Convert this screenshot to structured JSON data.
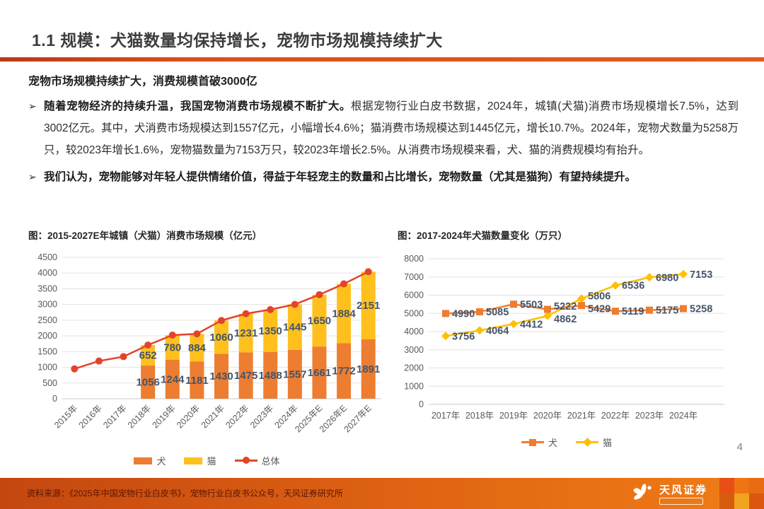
{
  "page": {
    "title": "1.1 规模：犬猫数量均保持增长，宠物市场规模持续扩大",
    "page_number": "4"
  },
  "intro": {
    "bullet_glyph": "➢",
    "subheading": "宠物市场规模持续扩大，消费规模首破3000亿",
    "bullet1_bold": "随着宠物经济的持续升温，我国宠物消费市场规模不断扩大。",
    "bullet1_rest": "根据宠物行业白皮书数据，2024年，城镇(犬猫)消费市场规模增长7.5%，达到3002亿元。其中，犬消费市场规模达到1557亿元，小幅增长4.6%；猫消费市场规模达到1445亿元，增长10.7%。2024年，宠物犬数量为5258万只，较2023年增长1.6%，宠物猫数量为7153万只，较2023年增长2.5%。从消费市场规模来看，犬、猫的消费规模均有抬升。",
    "bullet2": "我们认为，宠物能够对年轻人提供情绪价值，得益于年轻宠主的数量和占比增长，宠物数量（尤其是猫狗）有望持续提升。"
  },
  "chart_data": [
    {
      "type": "bar",
      "subtype": "stacked-bars-with-total-line",
      "title": "图：2015-2027E年城镇（犬猫）消费市场规模（亿元）",
      "categories": [
        "2015年",
        "2016年",
        "2017年",
        "2018年",
        "2019年",
        "2020年",
        "2021年",
        "2022年",
        "2023年",
        "2024年",
        "2025年E",
        "2026年E",
        "2027年E"
      ],
      "series": [
        {
          "name": "犬",
          "type": "bar",
          "color": "#ED7D31",
          "values": [
            null,
            null,
            null,
            1056,
            1244,
            1181,
            1430,
            1475,
            1488,
            1557,
            1661,
            1772,
            1891
          ]
        },
        {
          "name": "猫",
          "type": "bar",
          "color": "#FFC01E",
          "values": [
            null,
            null,
            null,
            652,
            780,
            884,
            1060,
            1231,
            1350,
            1445,
            1650,
            1884,
            2151
          ]
        },
        {
          "name": "总体",
          "type": "line",
          "color": "#E2442B",
          "values": [
            950,
            1200,
            1340,
            1708,
            2024,
            2065,
            2490,
            2706,
            2838,
            3002,
            3311,
            3656,
            4042
          ]
        }
      ],
      "ylim": [
        0,
        4500
      ],
      "ystep": 500,
      "grid": true,
      "legend_position": "bottom",
      "xlabel": "",
      "ylabel": ""
    },
    {
      "type": "line",
      "title": "图：2017-2024年犬猫数量变化（万只）",
      "categories": [
        "2017年",
        "2018年",
        "2019年",
        "2020年",
        "2021年",
        "2022年",
        "2023年",
        "2024年"
      ],
      "series": [
        {
          "name": "犬",
          "color": "#ED7D31",
          "marker": "square",
          "values": [
            4990,
            5085,
            5503,
            5222,
            5429,
            5119,
            5175,
            5258
          ]
        },
        {
          "name": "猫",
          "color": "#FFC000",
          "marker": "diamond",
          "values": [
            3756,
            4064,
            4412,
            4862,
            5806,
            6536,
            6980,
            7153
          ]
        }
      ],
      "ylim": [
        0,
        8000
      ],
      "ystep": 1000,
      "grid": true,
      "legend_position": "bottom",
      "xlabel": "",
      "ylabel": ""
    }
  ],
  "footer": {
    "source": "资料来源：《2025年中国宠物行业白皮书》，宠物行业白皮书公众号，天风证券研究所",
    "logo_text": "天风证券",
    "mosaic_colors": [
      "#e84f15",
      "#f07512",
      "#e86c12",
      "#d85c0e",
      "#f2a31f",
      "#dd5710"
    ]
  },
  "colors": {
    "accent_rule": "#DD4E1C",
    "dog_orange": "#ED7D31",
    "cat_yellow": "#FFC01E",
    "total_red": "#E2442B",
    "data_label": "#44546A",
    "axis_text": "#595959",
    "footer_text": "#5A1605"
  }
}
